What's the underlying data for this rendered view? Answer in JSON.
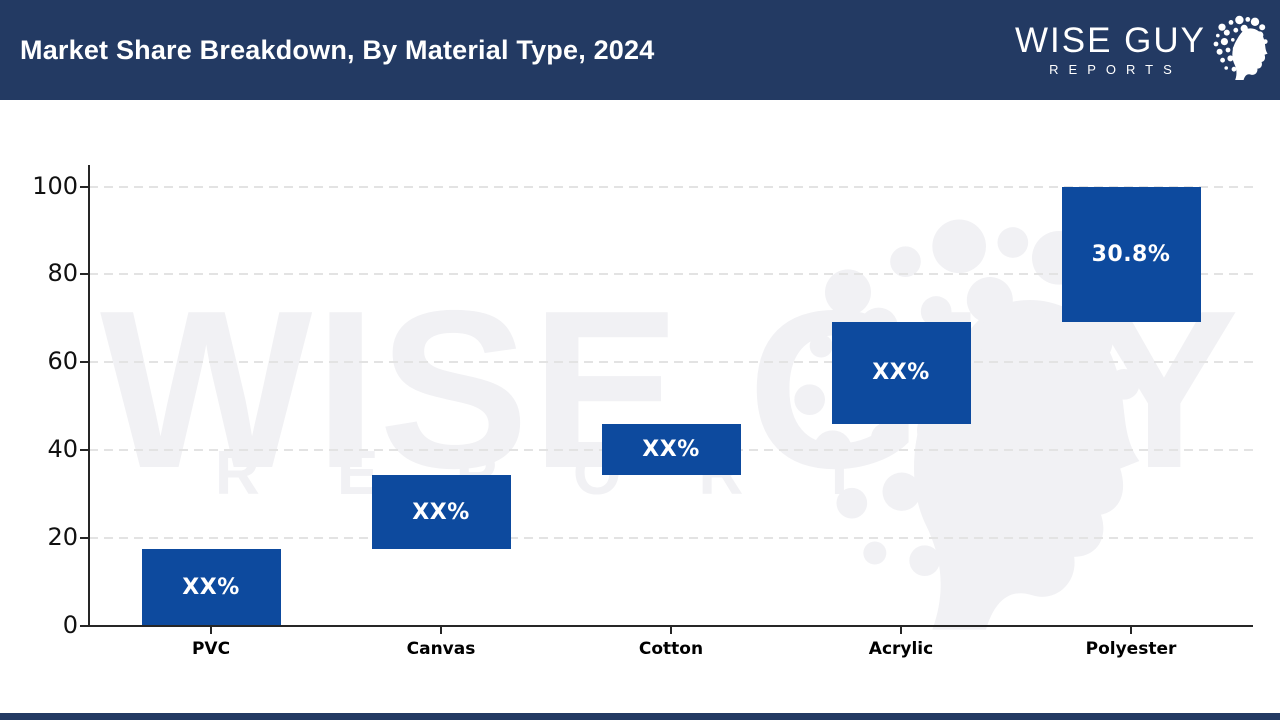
{
  "header": {
    "title": "Market Share Breakdown, By Material Type, 2024",
    "logo": {
      "name": "WISE GUY",
      "subtitle": "REPORTS"
    }
  },
  "watermark": {
    "line1": "WISE GUY",
    "line2": "R E P O R T S"
  },
  "chart_data": {
    "type": "bar",
    "subtype": "waterfall",
    "title": "Market Share Breakdown, By Material Type, 2024",
    "xlabel": "",
    "ylabel": "",
    "categories": [
      "PVC",
      "Canvas",
      "Cotton",
      "Acrylic",
      "Polyester"
    ],
    "segments": [
      {
        "category": "PVC",
        "start": 0,
        "end": 17.4,
        "value": 17.4,
        "label": "XX%"
      },
      {
        "category": "Canvas",
        "start": 17.4,
        "end": 34.2,
        "value": 16.8,
        "label": "XX%"
      },
      {
        "category": "Cotton",
        "start": 34.2,
        "end": 45.9,
        "value": 11.7,
        "label": "XX%"
      },
      {
        "category": "Acrylic",
        "start": 45.9,
        "end": 69.2,
        "value": 23.3,
        "label": "XX%"
      },
      {
        "category": "Polyester",
        "start": 69.2,
        "end": 100,
        "value": 30.8,
        "label": "30.8%"
      }
    ],
    "ylim": [
      0,
      100
    ],
    "yticks": [
      0,
      20,
      40,
      60,
      80,
      100
    ],
    "grid": "horizontal-dashed",
    "legend": "none",
    "bar_color": "#0d4a9e",
    "bar_label_color": "#ffffff"
  },
  "colors": {
    "header_bg": "#233a63",
    "footer_bg": "#233a63",
    "bar": "#0d4a9e",
    "axis": "#262626",
    "gridline": "#e3e3e3",
    "watermark": "#f1f1f4",
    "title_text": "#ffffff"
  }
}
